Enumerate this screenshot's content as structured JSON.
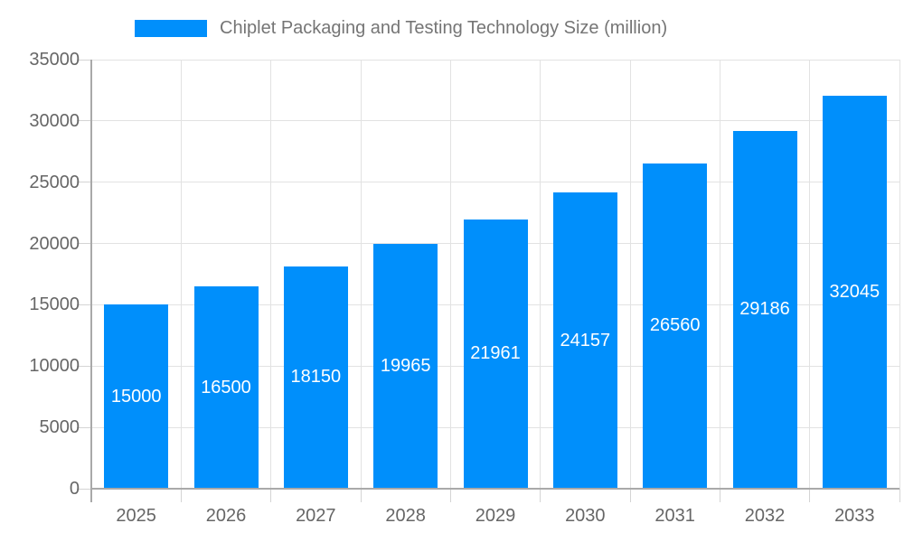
{
  "legend": {
    "label": "Chiplet Packaging and Testing Technology Size (million)"
  },
  "chart_data": {
    "type": "bar",
    "title": "Chiplet Packaging and Testing Technology Size (million)",
    "categories": [
      "2025",
      "2026",
      "2027",
      "2028",
      "2029",
      "2030",
      "2031",
      "2032",
      "2033"
    ],
    "series": [
      {
        "name": "Chiplet Packaging and Testing Technology Size (million)",
        "values": [
          15000,
          16500,
          18150,
          19965,
          21961,
          24157,
          26560,
          29186,
          32045
        ]
      }
    ],
    "value_labels": [
      "15000",
      "16500",
      "18150",
      "19965",
      "21961",
      "24157",
      "26560",
      "29186",
      "32045"
    ],
    "xlabel": "",
    "ylabel": "",
    "ylim": [
      0,
      35000
    ],
    "yticks": [
      0,
      5000,
      10000,
      15000,
      20000,
      25000,
      30000,
      35000
    ],
    "ytick_labels": [
      "0",
      "5000",
      "10000",
      "15000",
      "20000",
      "25000",
      "30000",
      "35000"
    ],
    "grid": true,
    "legend_position": "top",
    "colors": {
      "bar": "#008ffb",
      "grid": "#e2e2e2",
      "tick": "#d4d4d4",
      "axis": "#a9a9a9",
      "axis_text": "#666666",
      "value_text": "#ffffff",
      "legend_text": "#757575"
    }
  }
}
